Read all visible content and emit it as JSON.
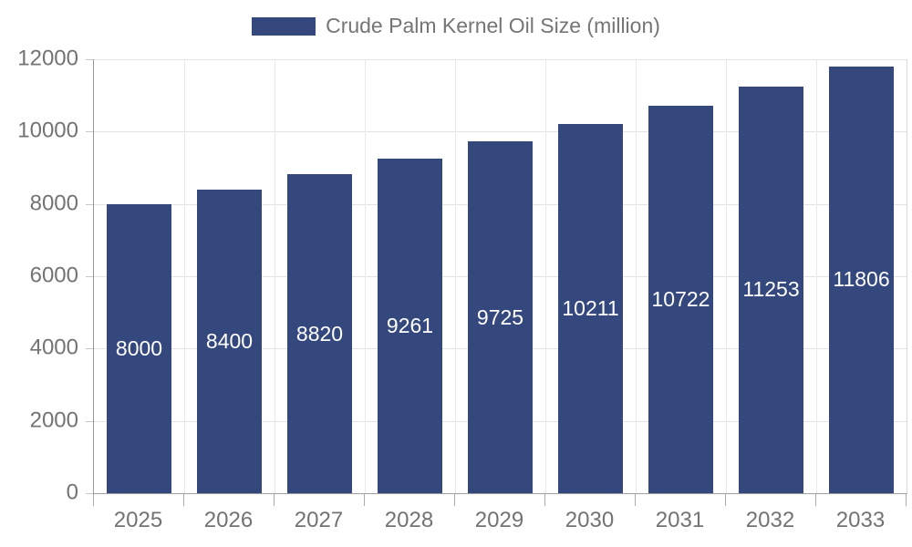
{
  "legend": {
    "label": "Crude Palm Kernel Oil Size (million)",
    "swatch_color": "#35487D"
  },
  "chart_data": {
    "type": "bar",
    "title": "Crude Palm Kernel Oil Size (million)",
    "categories": [
      "2025",
      "2026",
      "2027",
      "2028",
      "2029",
      "2030",
      "2031",
      "2032",
      "2033"
    ],
    "series": [
      {
        "name": "Crude Palm Kernel Oil Size (million)",
        "values": [
          8000,
          8400,
          8820,
          9261,
          9725,
          10211,
          10722,
          11253,
          11806
        ]
      }
    ],
    "xlabel": "",
    "ylabel": "",
    "ylim": [
      0,
      12000
    ],
    "yticks": [
      0,
      2000,
      4000,
      6000,
      8000,
      10000,
      12000
    ],
    "grid": true,
    "legend_position": "top-center",
    "bar_labels_inside": true,
    "colors": {
      "bar": "#35487D",
      "bar_label": "#ffffff",
      "axis_text": "#737373",
      "legend_text": "#757575"
    }
  }
}
